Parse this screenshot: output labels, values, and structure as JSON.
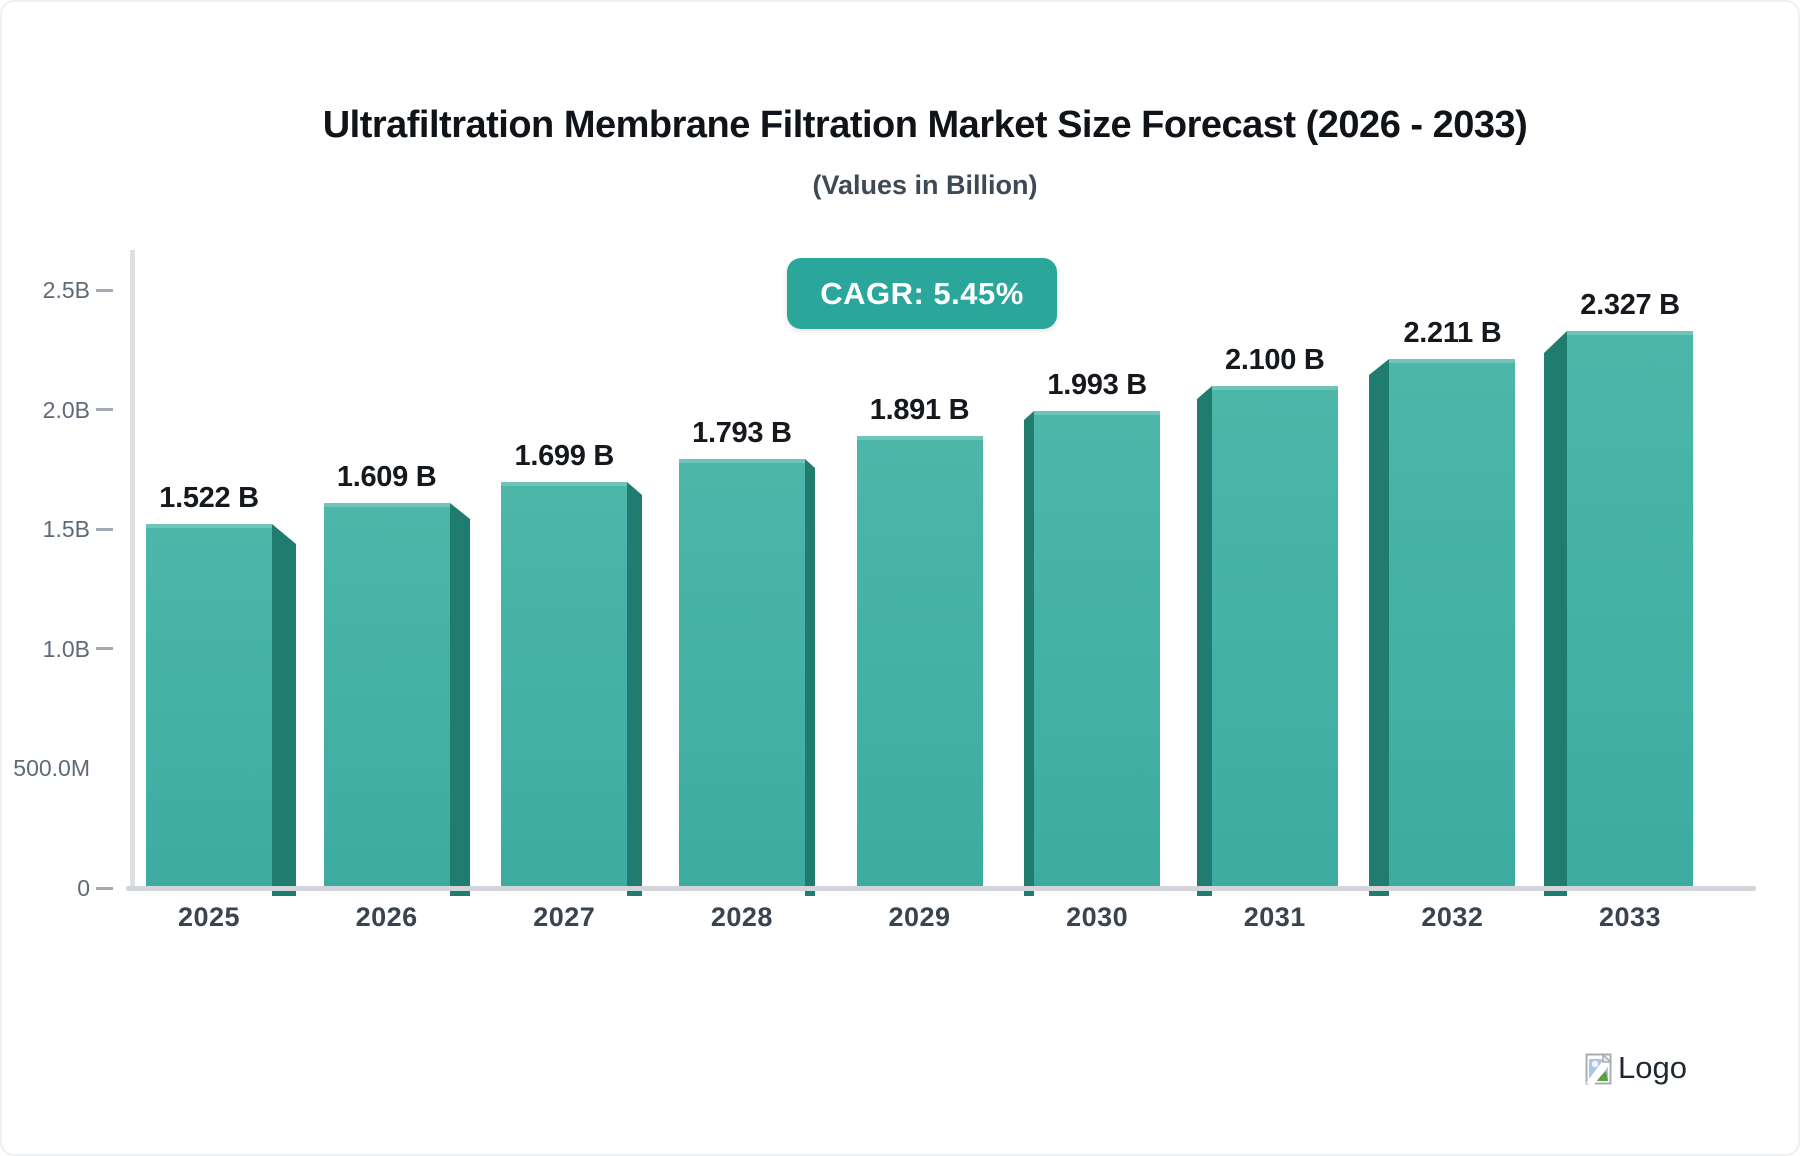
{
  "header": {
    "title": "Ultrafiltration Membrane Filtration Market Size Forecast (2026 - 2033)",
    "subtitle": "(Values in Billion)"
  },
  "badge": {
    "label": "CAGR: 5.45%",
    "bg_color": "#2aa79a"
  },
  "chart_data": {
    "type": "bar",
    "title": "Ultrafiltration Membrane Filtration Market Size Forecast (2026 - 2033)",
    "subtitle": "(Values in Billion)",
    "categories": [
      "2025",
      "2026",
      "2027",
      "2028",
      "2029",
      "2030",
      "2031",
      "2032",
      "2033"
    ],
    "values": [
      1.522,
      1.609,
      1.699,
      1.793,
      1.891,
      1.993,
      2.1,
      2.211,
      2.327
    ],
    "value_labels": [
      "1.522 B",
      "1.609 B",
      "1.699 B",
      "1.793 B",
      "1.891 B",
      "1.993 B",
      "2.100 B",
      "2.211 B",
      "2.327 B"
    ],
    "unit": "Billion",
    "ylim": [
      0,
      2.5
    ],
    "yticks": [
      {
        "label": "0",
        "dash": true
      },
      {
        "label": "500.0M",
        "dash": false
      },
      {
        "label": "1.0B",
        "dash": true
      },
      {
        "label": "1.5B",
        "dash": true
      },
      {
        "label": "2.0B",
        "dash": true
      },
      {
        "label": "2.5B",
        "dash": true
      }
    ],
    "grid": false,
    "legend": false,
    "style_3d": true,
    "bar_face_color_top": "#4cb6a9",
    "bar_face_color_bottom": "#3daca0",
    "bar_side_color": "#217c70",
    "axis_color": "#d2d6da",
    "annotation": "CAGR: 5.45%"
  },
  "footer": {
    "logo_alt": "Logo",
    "logo_icon": "broken-image-icon"
  }
}
